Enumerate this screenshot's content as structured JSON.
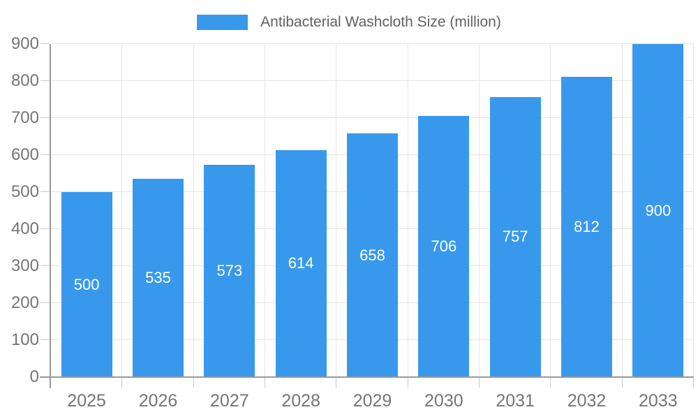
{
  "chart_data": {
    "type": "bar",
    "title": "Antibacterial Washcloth Size (million)",
    "categories": [
      "2025",
      "2026",
      "2027",
      "2028",
      "2029",
      "2030",
      "2031",
      "2032",
      "2033"
    ],
    "values": [
      500,
      535,
      573,
      614,
      658,
      706,
      757,
      812,
      900
    ],
    "xlabel": "",
    "ylabel": "",
    "ylim": [
      0,
      900
    ],
    "ytick_step": 100,
    "yticks": [
      0,
      100,
      200,
      300,
      400,
      500,
      600,
      700,
      800,
      900
    ],
    "grid": "on",
    "value_labels": "inside-center",
    "legend": {
      "label": "Antibacterial Washcloth Size (million)",
      "position": "top-center"
    },
    "colors": {
      "bar": "#3899EC",
      "value_label": "#FFFFFF",
      "grid_line": "#E5E5E5",
      "axis_line": "#999999",
      "tick_line": "#C9C9C9",
      "axis_label": "#757575",
      "legend_text": "#616161",
      "background": "#FFFFFF"
    }
  }
}
